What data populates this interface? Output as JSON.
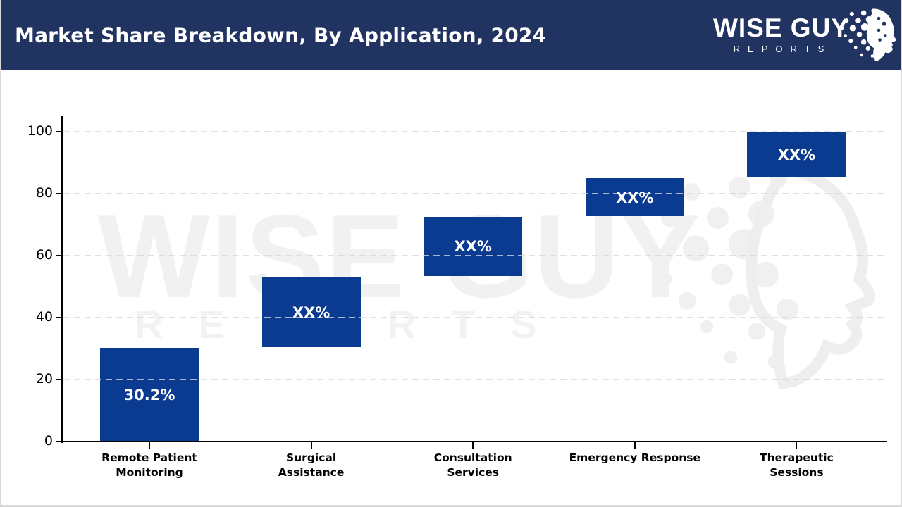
{
  "header": {
    "title": "Market Share Breakdown, By Application, 2024",
    "bg_color": "#213461",
    "logo": {
      "line1": "WISE GUY",
      "line2": "REPORTS"
    }
  },
  "watermark": {
    "line1": "WISE GUY",
    "line2": "REPORTS"
  },
  "chart_data": {
    "type": "bar",
    "subtype": "waterfall",
    "title": "Market Share Breakdown, By Application, 2024",
    "categories": [
      [
        "Remote Patient",
        "Monitoring"
      ],
      [
        "Surgical",
        "Assistance"
      ],
      [
        "Consultation",
        "Services"
      ],
      [
        "Emergency Response"
      ],
      [
        "Therapeutic",
        "Sessions"
      ]
    ],
    "segments": [
      {
        "start": 0,
        "end": 30.2,
        "value": 30.2,
        "label": "30.2%"
      },
      {
        "start": 30.2,
        "end": 53.2,
        "value": 23.0,
        "label": "XX%"
      },
      {
        "start": 53.2,
        "end": 72.5,
        "value": 19.3,
        "label": "XX%"
      },
      {
        "start": 72.5,
        "end": 85.0,
        "value": 12.5,
        "label": "XX%"
      },
      {
        "start": 85.0,
        "end": 100.0,
        "value": 15.0,
        "label": "XX%"
      }
    ],
    "ylabel": "",
    "xlabel": "",
    "ylim": [
      0,
      100
    ],
    "yticks": [
      0,
      20,
      40,
      60,
      80,
      100
    ],
    "bar_color": "#0a3b90",
    "grid": {
      "show": true,
      "style": "dashed",
      "color": "#d9d9d9",
      "axis": "y"
    },
    "legend": "none"
  }
}
